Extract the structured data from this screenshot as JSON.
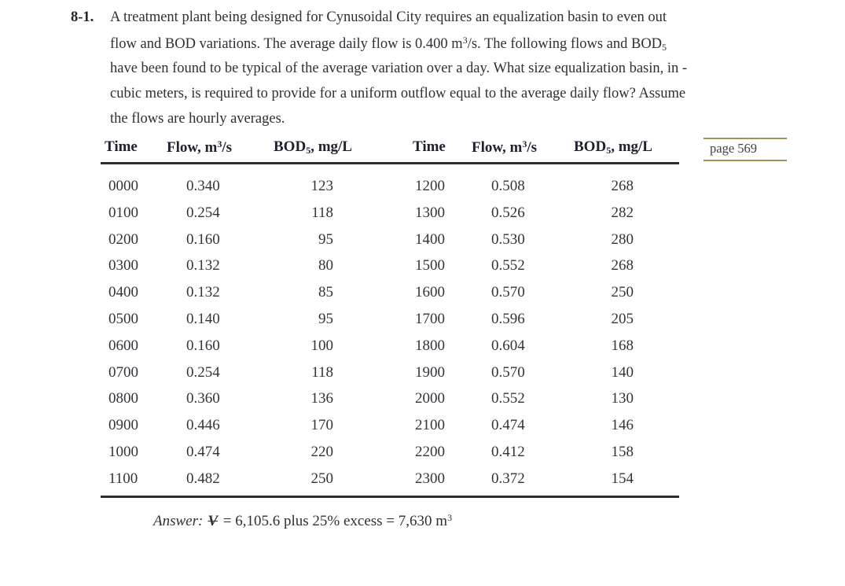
{
  "problem": {
    "number": "8-1.",
    "line1": "A treatment plant being designed for Cynusoidal City requires an equalization basin to even out",
    "line2a": "flow and BOD variations. The average daily flow is 0.400 m",
    "line2_sup": "3",
    "line2b": "/s. The following flows and BOD",
    "line2_sub": "5",
    "line3": "have been found to be typical of the average variation over a day. What size equalization basin, in -",
    "line4": "cubic meters, is required to provide for a uniform outflow equal to the average daily flow? Assume",
    "line5": "the flows are hourly averages."
  },
  "table": {
    "headers": {
      "time": "Time",
      "flow_pre": "Flow, m",
      "flow_sup": "3",
      "flow_post": "/s",
      "bod_pre": "BOD",
      "bod_sub": "5",
      "bod_post": ", mg/L"
    },
    "left_rows": [
      [
        "0000",
        "0.340",
        "123"
      ],
      [
        "0100",
        "0.254",
        "118"
      ],
      [
        "0200",
        "0.160",
        "95"
      ],
      [
        "0300",
        "0.132",
        "80"
      ],
      [
        "0400",
        "0.132",
        "85"
      ],
      [
        "0500",
        "0.140",
        "95"
      ],
      [
        "0600",
        "0.160",
        "100"
      ],
      [
        "0700",
        "0.254",
        "118"
      ],
      [
        "0800",
        "0.360",
        "136"
      ],
      [
        "0900",
        "0.446",
        "170"
      ],
      [
        "1000",
        "0.474",
        "220"
      ],
      [
        "1100",
        "0.482",
        "250"
      ]
    ],
    "right_rows": [
      [
        "1200",
        "0.508",
        "268"
      ],
      [
        "1300",
        "0.526",
        "282"
      ],
      [
        "1400",
        "0.530",
        "280"
      ],
      [
        "1500",
        "0.552",
        "268"
      ],
      [
        "1600",
        "0.570",
        "250"
      ],
      [
        "1700",
        "0.596",
        "205"
      ],
      [
        "1800",
        "0.604",
        "168"
      ],
      [
        "1900",
        "0.570",
        "140"
      ],
      [
        "2000",
        "0.552",
        "130"
      ],
      [
        "2100",
        "0.474",
        "146"
      ],
      [
        "2200",
        "0.412",
        "158"
      ],
      [
        "2300",
        "0.372",
        "154"
      ]
    ]
  },
  "page_badge": {
    "label": "page 569",
    "line_color": "#9c9456"
  },
  "answer": {
    "label": "Answer:",
    "v_symbol": "V",
    "mid": " = 6,105.6 plus 25% excess = 7,630 m",
    "sup": "3"
  }
}
